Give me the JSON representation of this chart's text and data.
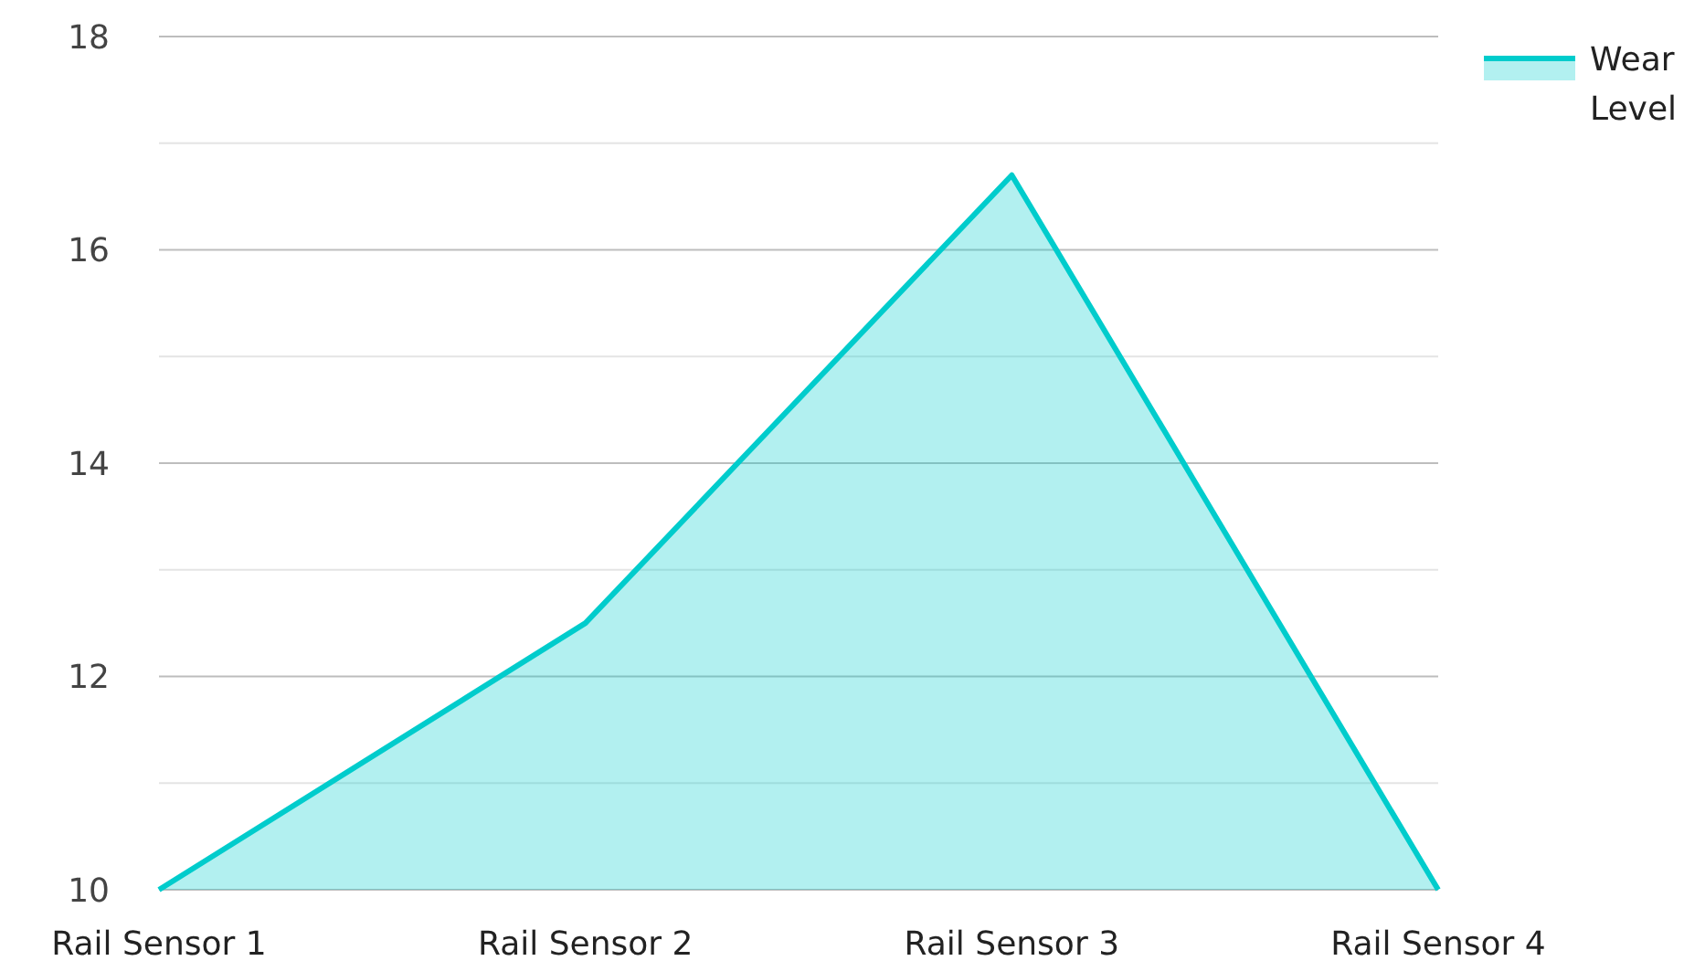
{
  "chart_data": {
    "type": "area",
    "categories": [
      "Rail Sensor 1",
      "Rail Sensor 2",
      "Rail Sensor 3",
      "Rail Sensor 4"
    ],
    "series": [
      {
        "name": "Wear Level",
        "color": "#00cccc",
        "values": [
          10,
          12.5,
          16.7,
          10
        ]
      }
    ],
    "ylim": [
      10,
      18
    ],
    "yticks": [
      10,
      {
        "value": 11,
        "label": null
      },
      12,
      {
        "value": 13,
        "label": null
      },
      14,
      {
        "value": 15,
        "label": null
      },
      16,
      {
        "value": 17,
        "label": null
      },
      18
    ],
    "grid": "y",
    "legend": "top right"
  }
}
